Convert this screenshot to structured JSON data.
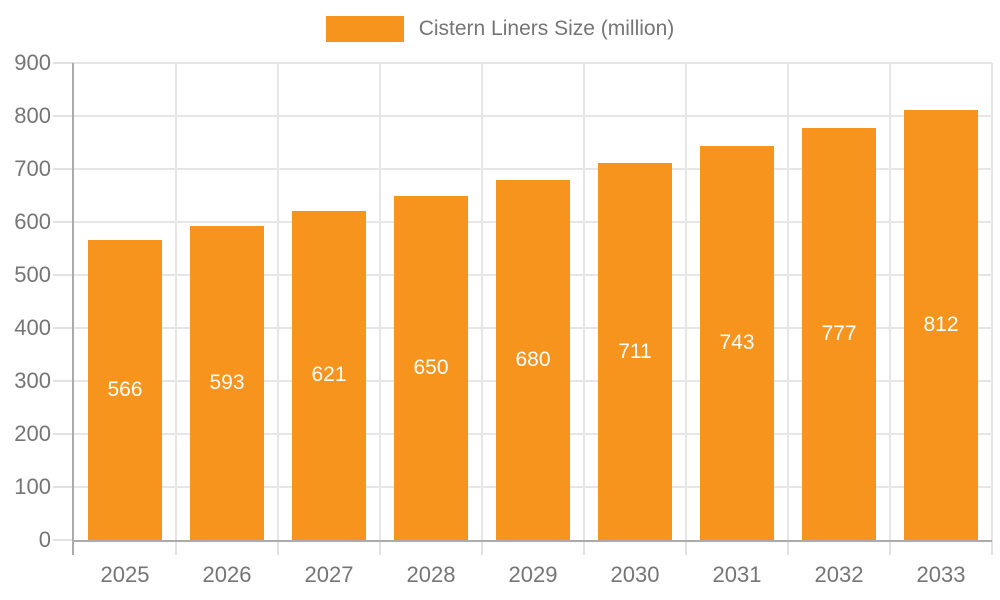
{
  "chart_data": {
    "type": "bar",
    "title": "",
    "categories": [
      "2025",
      "2026",
      "2027",
      "2028",
      "2029",
      "2030",
      "2031",
      "2032",
      "2033"
    ],
    "series": [
      {
        "name": "Cistern Liners Size (million)",
        "values": [
          566,
          593,
          621,
          650,
          680,
          711,
          743,
          777,
          812
        ]
      }
    ],
    "xlabel": "",
    "ylabel": "",
    "ylim": [
      0,
      900
    ],
    "y_ticks": [
      0,
      100,
      200,
      300,
      400,
      500,
      600,
      700,
      800,
      900
    ],
    "grid": true,
    "legend_position": "top",
    "bar_value_labels_visible": true
  },
  "colors": {
    "bar": "#F7941E",
    "bar_label": "#FFFFFF",
    "axis_line": "#ABABAB",
    "grid_line": "#E6E6E6",
    "tick_line": "#E2E2E2",
    "text": "#757575",
    "background": "#FFFFFF"
  }
}
